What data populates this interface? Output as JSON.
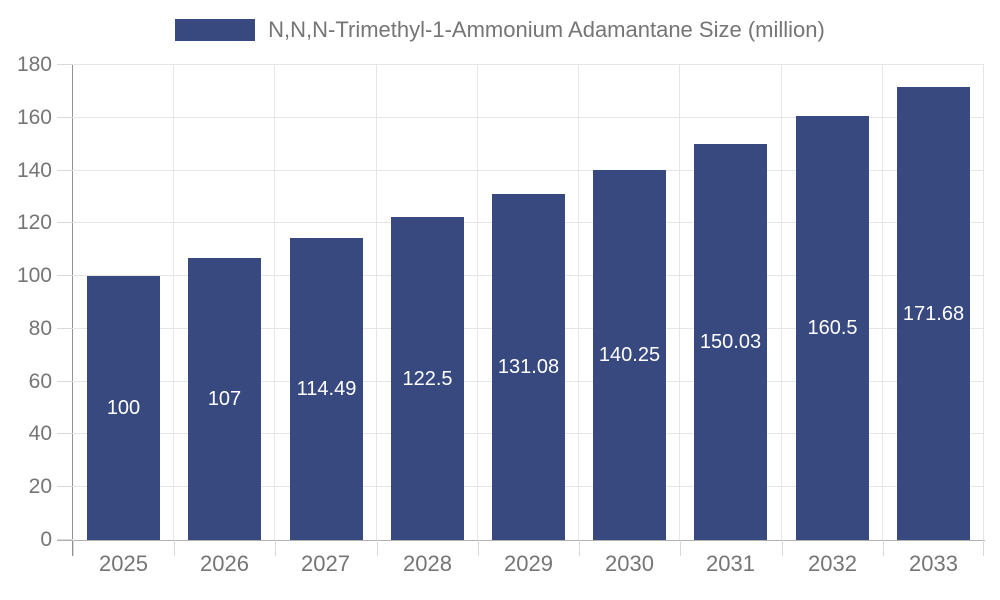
{
  "legend": {
    "series_label": "N,N,N-Trimethyl-1-Ammonium Adamantane Size (million)"
  },
  "chart_data": {
    "type": "bar",
    "title": "N,N,N-Trimethyl-1-Ammonium Adamantane Size (million)",
    "categories": [
      "2025",
      "2026",
      "2027",
      "2028",
      "2029",
      "2030",
      "2031",
      "2032",
      "2033"
    ],
    "values": [
      100,
      107,
      114.49,
      122.5,
      131.08,
      140.25,
      150.03,
      160.5,
      171.68
    ],
    "value_labels": [
      "100",
      "107",
      "114.49",
      "122.5",
      "131.08",
      "140.25",
      "150.03",
      "160.5",
      "171.68"
    ],
    "xlabel": "",
    "ylabel": "",
    "ylim": [
      0,
      180
    ],
    "yticks": [
      0,
      20,
      40,
      60,
      80,
      100,
      120,
      140,
      160,
      180
    ],
    "grid": true,
    "legend_position": "top",
    "bar_color": "#38497F",
    "value_label_color": "#ffffff",
    "axis_label_color": "#757575",
    "gridline_color": "#e6e6e6"
  }
}
